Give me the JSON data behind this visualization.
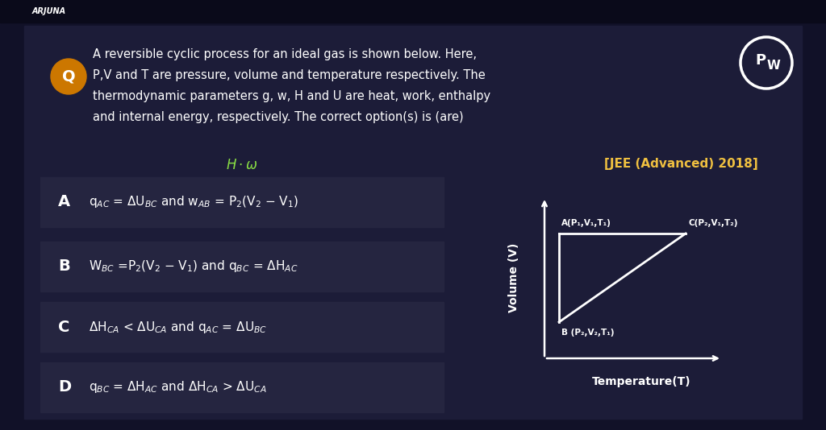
{
  "bg_color": "#111128",
  "top_bar_color": "#0a0a1a",
  "panel_bg": "#1c1c38",
  "card_bg": "#252540",
  "text_color": "#ffffff",
  "gold_color": "#f0c040",
  "green_color": "#88dd44",
  "title_text_line1": "A reversible cyclic process for an ideal gas is shown below. Here,",
  "title_text_line2": "P,V and T are pressure, volume and temperature respectively. The",
  "title_text_line3": "thermodynamic parameters g, w, H and U are heat, work, enthalpy",
  "title_text_line4": "and internal energy, respectively. The correct option(s) is (are)",
  "jee_text": "[JEE (Advanced) 2018]",
  "xlabel": "Temperature(T)",
  "ylabel": "Volume (V)",
  "point_A": "A(P₁,V₁,T₁)",
  "point_B": "B (P₂,V₂,T₁)",
  "point_C": "C(P₂,V₁,T₂)",
  "triangle_color": "#ffffff",
  "axis_color": "#ffffff",
  "arjuna_text": "ARJUNA",
  "options": [
    {
      "label": "A",
      "text1": "q",
      "text1_sub": "AC",
      "text2": " = ΔU",
      "text2_sub": "BC",
      "text3": " and w",
      "text3_sub": "AB",
      "text4": " = P₂(V₂ − V₁)"
    },
    {
      "label": "B",
      "text1": "W",
      "text1_sub": "BC",
      "text2": " =P₂(V₂ − V₁) and q",
      "text2_sub": "BC",
      "text3": " = ΔH",
      "text3_sub": "AC"
    },
    {
      "label": "C",
      "text1": "ΔH",
      "text1_sub": "CA",
      "text2": " < ΔU",
      "text2_sub": "CA",
      "text3": " and q",
      "text3_sub": "AC",
      "text4": " = ΔU",
      "text4_sub": "BC"
    },
    {
      "label": "D",
      "text1": "q",
      "text1_sub": "BC",
      "text2": " = ΔH",
      "text2_sub": "AC",
      "text3": " and ΔH",
      "text3_sub": "CA",
      "text4": " > ΔU",
      "text4_sub": "CA"
    }
  ],
  "option_texts": [
    "q$_{AC}$ = ΔU$_{BC}$ and w$_{AB}$ = P$_2$(V$_2$ − V$_1$)",
    "W$_{BC}$ =P$_2$(V$_2$ − V$_1$) and q$_{BC}$ = ΔH$_{AC}$",
    "ΔH$_{CA}$ < ΔU$_{CA}$ and q$_{AC}$ = ΔU$_{BC}$",
    "q$_{BC}$ = ΔH$_{AC}$ and ΔH$_{CA}$ > ΔU$_{CA}$"
  ],
  "option_labels": [
    "A",
    "B",
    "C",
    "D"
  ]
}
